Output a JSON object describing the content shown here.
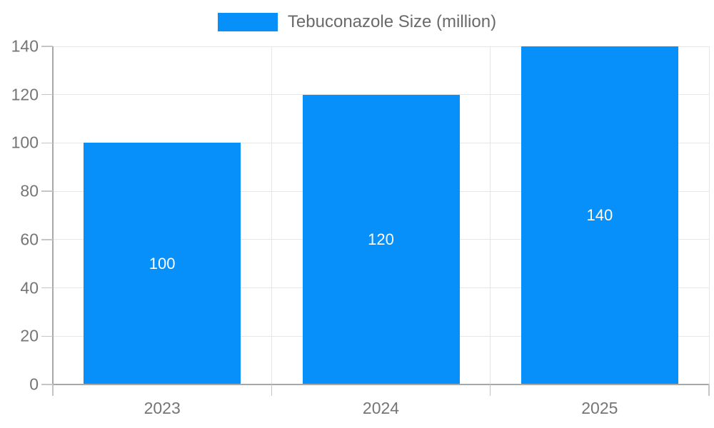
{
  "chart_data": {
    "type": "bar",
    "title": "",
    "xlabel": "",
    "ylabel": "",
    "categories": [
      "2023",
      "2024",
      "2025"
    ],
    "series": [
      {
        "name": "Tebuconazole Size (million)",
        "values": [
          100,
          120,
          140
        ]
      }
    ],
    "bar_value_labels": [
      "100",
      "120",
      "140"
    ],
    "ylim": [
      0,
      140
    ],
    "yticks": [
      0,
      20,
      40,
      60,
      80,
      100,
      120,
      140
    ],
    "grid": true,
    "legend_position": "top-center",
    "colors": {
      "bar": "#0890FA",
      "bar_label": "#ffffff",
      "grid_line": "#e6e6e6",
      "axis_line": "#a8a8a8",
      "tick_mark": "#c5c5c5",
      "tick_label": "#757575",
      "legend_text": "#6a6a6a",
      "background": "#ffffff"
    }
  }
}
